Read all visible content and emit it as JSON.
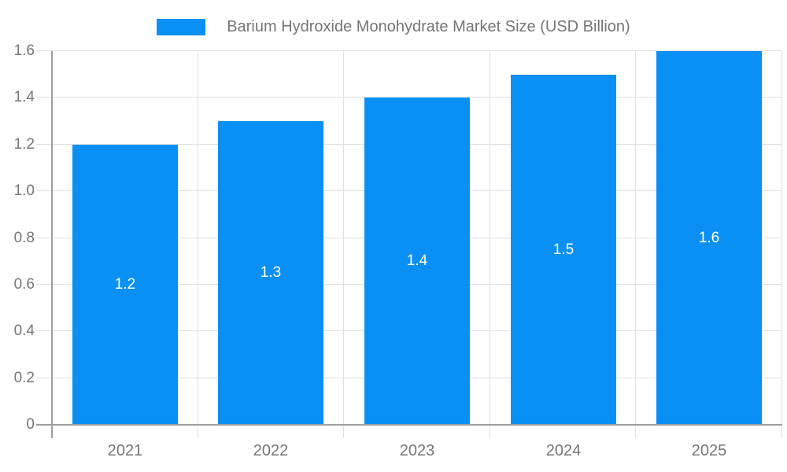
{
  "page": {
    "background": "#ffffff"
  },
  "chart_data": {
    "type": "bar",
    "title": "Barium Hydroxide Monohydrate Market Size (USD Billion)",
    "categories": [
      "2021",
      "2022",
      "2023",
      "2024",
      "2025"
    ],
    "values": [
      1.2,
      1.3,
      1.4,
      1.5,
      1.6
    ],
    "bar_labels": [
      "1.2",
      "1.3",
      "1.4",
      "1.5",
      "1.6"
    ],
    "xlabel": "",
    "ylabel": "",
    "ylim": [
      0,
      1.6
    ],
    "y_ticks": [
      0,
      0.2,
      0.4,
      0.6,
      0.8,
      1.0,
      1.2,
      1.4,
      1.6
    ],
    "y_tick_labels": [
      "0",
      "0.2",
      "0.4",
      "0.6",
      "0.8",
      "1.0",
      "1.2",
      "1.4",
      "1.6"
    ],
    "grid": true,
    "legend_position": "top",
    "legend_label": "Barium Hydroxide Monohydrate Market Size (USD Billion)",
    "colors": {
      "bar": "#0A90F5",
      "grid_line": "#e0e0e0",
      "axis_line": "#9e9e9e",
      "tick_label": "#757575",
      "title": "#757575",
      "bar_value_label": "#ffffff"
    }
  }
}
